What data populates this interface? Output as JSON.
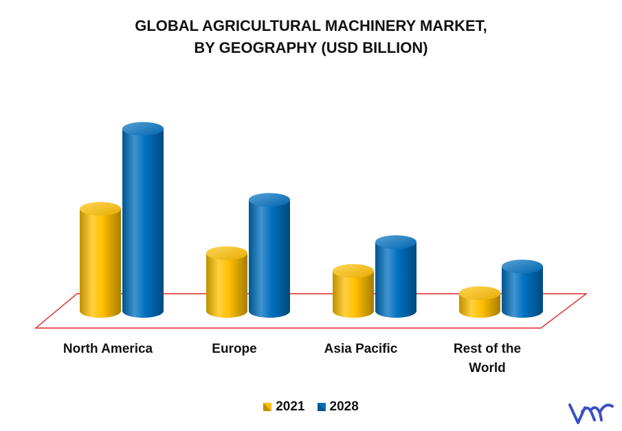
{
  "chart_data": {
    "type": "bar",
    "title": [
      "GLOBAL AGRICULTURAL MACHINERY MARKET,",
      "BY GEOGRAPHY (USD BILLION)"
    ],
    "categories": [
      "North America",
      "Europe",
      "Asia Pacific",
      "Rest of the World"
    ],
    "series": [
      {
        "name": "2021",
        "values": [
          46,
          26,
          18,
          8
        ],
        "color": "#FFC000"
      },
      {
        "name": "2028",
        "values": [
          82,
          50,
          31,
          20
        ],
        "color": "#0070C0"
      }
    ],
    "ylim": [
      0,
      85
    ],
    "grid": false,
    "axis_tick_labels_shown": false,
    "legend_position": "bottom",
    "style": "3d-cylinder"
  },
  "logo": {
    "icon": "vmr-logo-icon",
    "color": "#3B4FC4"
  }
}
